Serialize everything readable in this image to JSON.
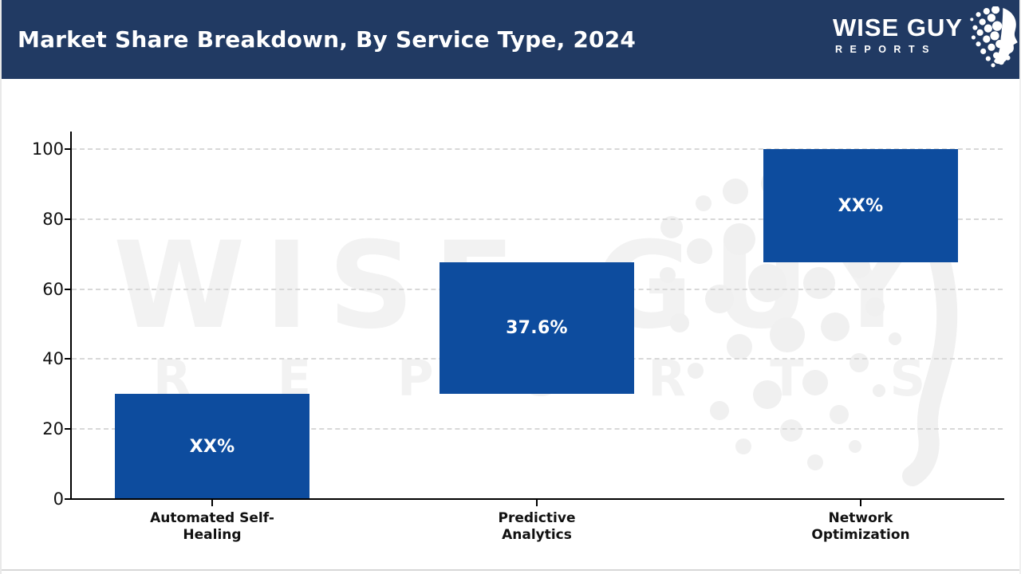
{
  "header": {
    "title": "Market Share Breakdown, By Service Type, 2024",
    "logo": {
      "name": "WISE GUY",
      "tagline": "REPORTS"
    }
  },
  "watermark": {
    "line1": "WISE GUY",
    "line2": "REPORTS"
  },
  "chart_data": {
    "type": "bar",
    "variant": "waterfall",
    "title": "Market Share Breakdown, By Service Type, 2024",
    "categories": [
      "Automated Self-Healing",
      "Predictive Analytics",
      "Network Optimization"
    ],
    "category_label_lines": [
      [
        "Automated Self-",
        "Healing"
      ],
      [
        "Predictive",
        "Analytics"
      ],
      [
        "Network",
        "Optimization"
      ]
    ],
    "series": [
      {
        "category": "Automated Self-Healing",
        "start": 0,
        "end": 30,
        "label": "XX%"
      },
      {
        "category": "Predictive Analytics",
        "start": 30,
        "end": 67.6,
        "label": "37.6%"
      },
      {
        "category": "Network Optimization",
        "start": 67.6,
        "end": 100,
        "label": "XX%"
      }
    ],
    "xlabel": "",
    "ylabel": "",
    "ylim": [
      0,
      105
    ],
    "yticks": [
      0,
      20,
      40,
      60,
      80,
      100
    ],
    "grid": "horizontal dashed",
    "legend": "none",
    "bar_color": "#0d4c9e",
    "bar_label_color": "#ffffff",
    "axis_color": "#000000",
    "gridline_color": "#d8d8d8"
  },
  "colors": {
    "header_bg": "#213a63",
    "background": "#ffffff",
    "watermark": "#f2f2f2"
  }
}
